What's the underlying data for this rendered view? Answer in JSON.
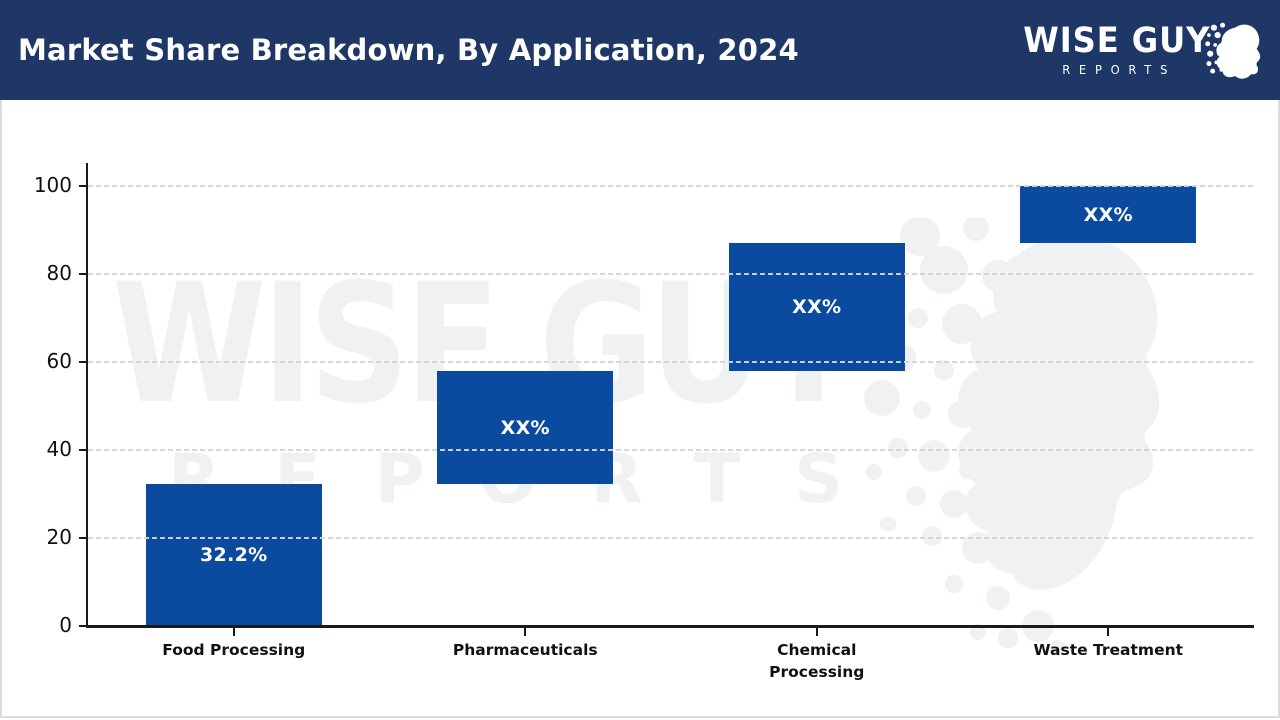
{
  "header": {
    "title": "Market Share Breakdown, By Application, 2024",
    "logo": {
      "wordmark": "WISE GUY",
      "subtitle": "REPORTS"
    }
  },
  "watermark": {
    "wordmark": "WISE GUY",
    "subtitle": "REPORTS"
  },
  "chart_data": {
    "type": "bar",
    "subtype": "waterfall",
    "title": "Market Share Breakdown, By Application, 2024",
    "categories": [
      "Food Processing",
      "Pharmaceuticals",
      "Chemical Processing",
      "Waste Treatment"
    ],
    "segments": [
      {
        "category": "Food Processing",
        "start": 0,
        "end": 32.2,
        "label": "32.2%"
      },
      {
        "category": "Pharmaceuticals",
        "start": 32.2,
        "end": 58,
        "label": "XX%"
      },
      {
        "category": "Chemical Processing",
        "start": 58,
        "end": 87,
        "label": "XX%"
      },
      {
        "category": "Waste Treatment",
        "start": 87,
        "end": 100,
        "label": "XX%"
      }
    ],
    "ylim": [
      0,
      100
    ],
    "yticks": [
      0,
      20,
      40,
      60,
      80,
      100
    ],
    "xlabel": "",
    "ylabel": "",
    "grid": "horizontal-dashed",
    "legend": "none",
    "bar_color": "#0a4a9f"
  },
  "colors": {
    "header_bg": "#1f3766",
    "bar": "#0a4a9f",
    "bar_label": "#ffffff",
    "axis": "#1a1a1a",
    "gridline": "#d6d6d6",
    "watermark": "#f0f1f3",
    "border": "#dcdcdc"
  }
}
